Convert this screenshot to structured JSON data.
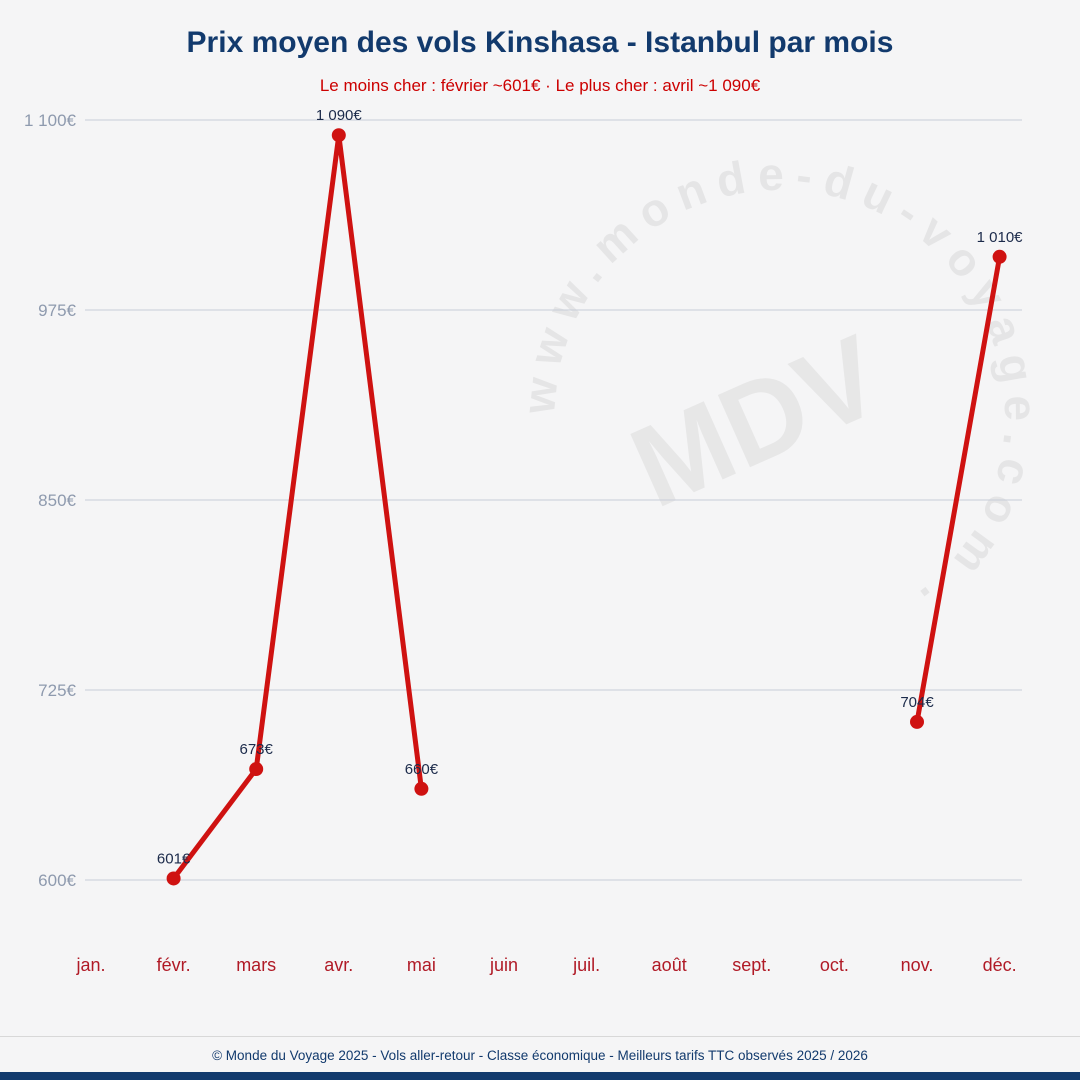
{
  "page": {
    "title": "Prix moyen des vols Kinshasa - Istanbul par mois",
    "subtitle": "Le moins cher : février ~601€ · Le plus cher : avril ~1 090€",
    "footer": "© Monde du Voyage 2025 - Vols aller-retour - Classe économique - Meilleurs tarifs TTC observés 2025 / 2026"
  },
  "watermark": {
    "circle_text": "www.monde-du-voyage.com .",
    "center_text": "MDV"
  },
  "colors": {
    "background": "#f5f5f6",
    "title": "#123a6d",
    "subtitle": "#cc0000",
    "line": "#cf1211",
    "grid": "#c8cdd8",
    "axis_labels": "#8e9aae",
    "month_labels": "#b01a26",
    "point_labels": "#1b2a4a",
    "footer_bar": "#123a6d"
  },
  "chart_data": {
    "type": "line",
    "title": "Prix moyen des vols Kinshasa - Istanbul par mois",
    "xlabel": "",
    "ylabel": "",
    "categories": [
      "jan.",
      "févr.",
      "mars",
      "avr.",
      "mai",
      "juin",
      "juil.",
      "août",
      "sept.",
      "oct.",
      "nov.",
      "déc."
    ],
    "values": [
      null,
      601,
      673,
      1090,
      660,
      null,
      null,
      null,
      null,
      null,
      704,
      1010
    ],
    "point_labels": [
      "",
      "601€",
      "673€",
      "1 090€",
      "660€",
      "",
      "",
      "",
      "",
      "",
      "704€",
      "1 010€"
    ],
    "y_ticks": [
      600,
      725,
      850,
      975,
      1100
    ],
    "y_tick_labels": [
      "600€",
      "725€",
      "850€",
      "975€",
      "1 100€"
    ],
    "ylim": [
      600,
      1100
    ],
    "grid": true,
    "legend": "none",
    "cheapest": {
      "month": "février",
      "value": 601
    },
    "most_expensive": {
      "month": "avril",
      "value": 1090
    }
  }
}
